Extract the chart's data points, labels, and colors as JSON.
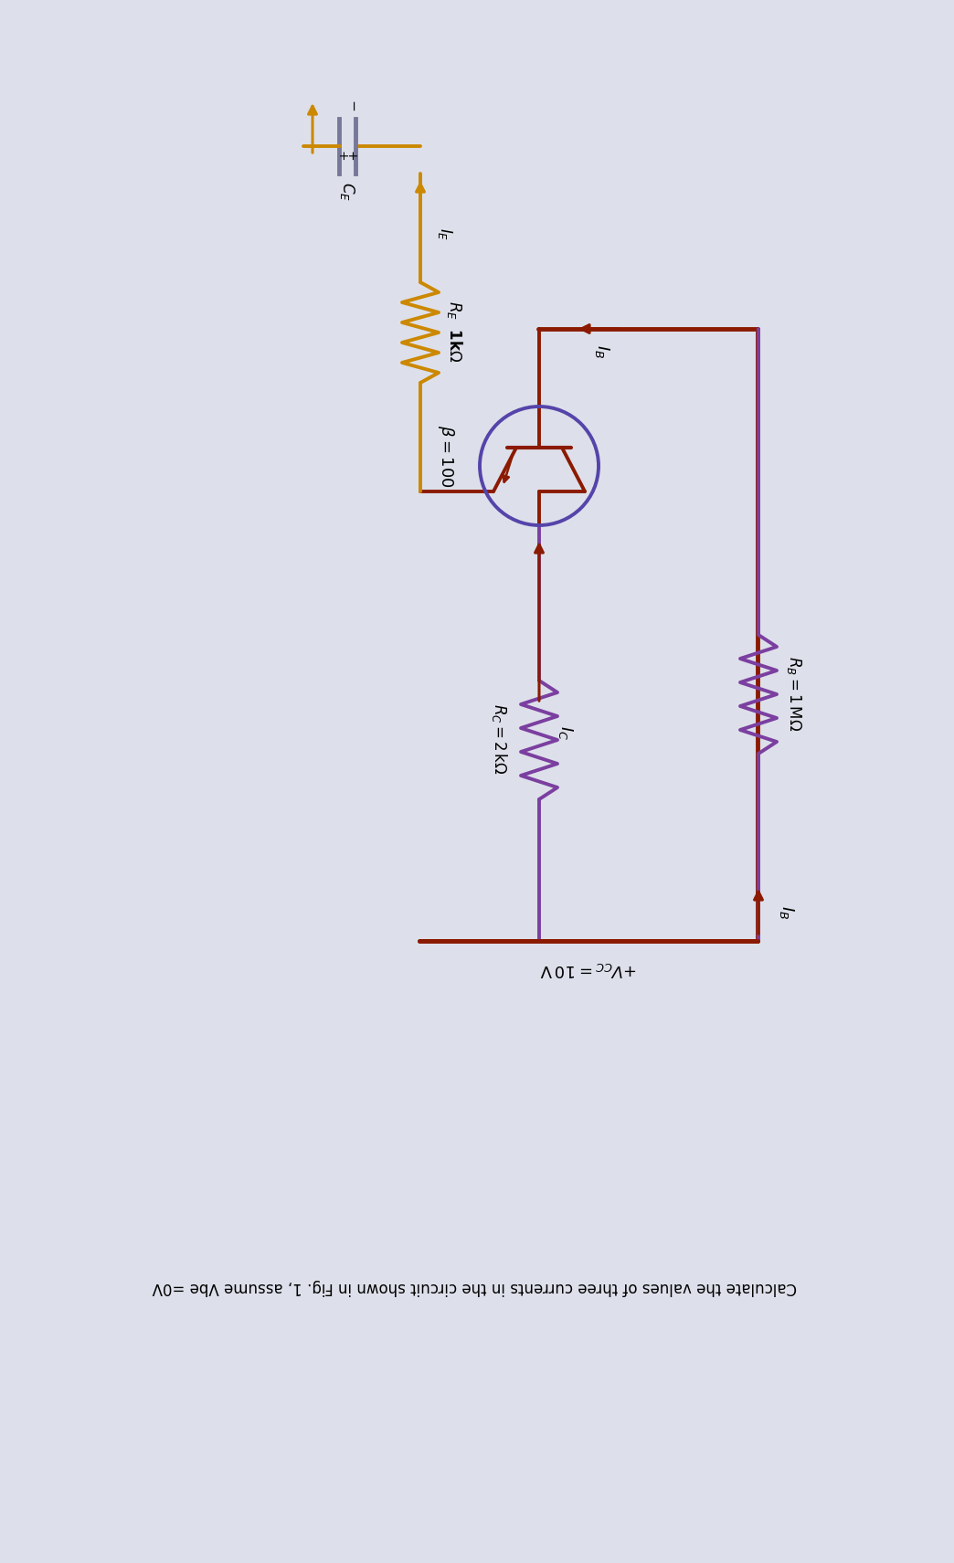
{
  "title": "Calculate the values of three currents in the circuit shown in Fig. 1, assume Vbe =0V",
  "title_fontsize": 11,
  "bg_color": "#cdd0dc",
  "wire_color_dark": "#8B1A00",
  "wire_color_orange": "#CC8800",
  "resistor_color_RB": "#7B3FA0",
  "resistor_color_RC": "#7B3FA0",
  "resistor_color_RE": "#CC8800",
  "transistor_circle_color": "#5544AA",
  "paper_color": "#dde0ea"
}
